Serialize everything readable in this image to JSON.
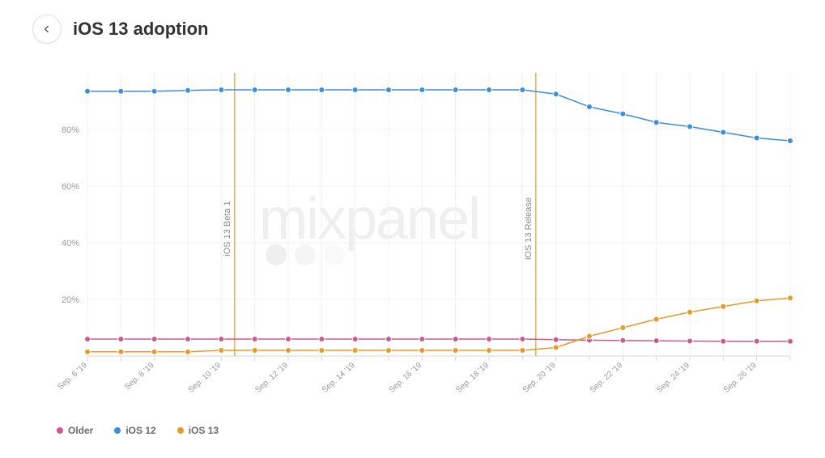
{
  "header": {
    "title": "iOS 13 adoption"
  },
  "chart": {
    "type": "line",
    "background_color": "#ffffff",
    "grid_color": "#f1f1f1",
    "axis_label_color": "#9a9a9a",
    "font_family": "Helvetica Neue",
    "y": {
      "min": 0,
      "max": 100,
      "ticks": [
        20,
        40,
        60,
        80
      ],
      "suffix": "%"
    },
    "x": {
      "labels": [
        "Sep. 6 '19",
        "",
        "Sep. 8 '19",
        "",
        "Sep. 10 '19",
        "",
        "Sep. 12 '19",
        "",
        "Sep. 14 '19",
        "",
        "Sep. 16 '19",
        "",
        "Sep. 18 '19",
        "",
        "Sep. 20 '19",
        "",
        "Sep. 22 '19",
        "",
        "Sep. 24 '19",
        "",
        "Sep. 26 '19",
        ""
      ],
      "n_points": 22
    },
    "series": [
      {
        "name": "Older",
        "color": "#cc5a8c",
        "line_width": 1.5,
        "marker_size": 3.5,
        "values": [
          6,
          6,
          6,
          6,
          6,
          6,
          6,
          6,
          6,
          6,
          6,
          6,
          6,
          6,
          5.8,
          5.6,
          5.5,
          5.4,
          5.3,
          5.2,
          5.2,
          5.2
        ]
      },
      {
        "name": "iOS 12",
        "color": "#3a8edb",
        "line_width": 1.5,
        "marker_size": 3.5,
        "values": [
          93.5,
          93.5,
          93.5,
          93.8,
          94,
          94,
          94,
          94,
          94,
          94,
          94,
          94,
          94,
          94,
          92.5,
          88,
          85.5,
          82.5,
          81,
          79,
          77,
          76
        ]
      },
      {
        "name": "iOS 13",
        "color": "#e79a27",
        "line_width": 1.5,
        "marker_size": 3.5,
        "values": [
          1.5,
          1.5,
          1.5,
          1.5,
          2,
          2,
          2,
          2,
          2,
          2,
          2,
          2,
          2,
          2,
          3,
          7,
          10,
          13,
          15.5,
          17.5,
          19.5,
          20.5
        ]
      }
    ],
    "annotations": [
      {
        "x_index": 4,
        "label": "iOS 13 Beta 1",
        "color": "#e79a27"
      },
      {
        "x_index": 13,
        "label": "iOS 13 Release",
        "color": "#e79a27"
      }
    ],
    "watermark": "mixpanel"
  },
  "legend": {
    "items": [
      {
        "label": "Older",
        "color": "#cc5a8c"
      },
      {
        "label": "iOS 12",
        "color": "#3a8edb"
      },
      {
        "label": "iOS 13",
        "color": "#e79a27"
      }
    ]
  }
}
